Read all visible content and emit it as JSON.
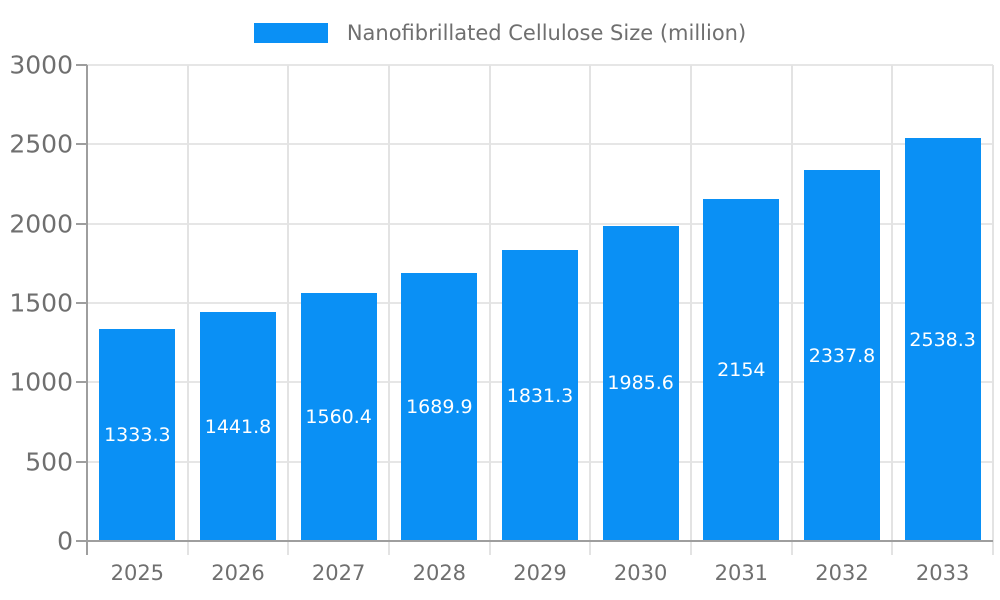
{
  "legend": {
    "label": "Nanofibrillated Cellulose Size (million)"
  },
  "chart_data": {
    "type": "bar",
    "title": "Nanofibrillated Cellulose Size (million)",
    "categories": [
      "2025",
      "2026",
      "2027",
      "2028",
      "2029",
      "2030",
      "2031",
      "2032",
      "2033"
    ],
    "values": [
      1333.3,
      1441.8,
      1560.4,
      1689.9,
      1831.3,
      1985.6,
      2154,
      2337.8,
      2538.3
    ],
    "value_labels": [
      "1333.3",
      "1441.8",
      "1560.4",
      "1689.9",
      "1831.3",
      "1985.6",
      "2154",
      "2337.8",
      "2538.3"
    ],
    "series": [
      {
        "name": "Nanofibrillated Cellulose Size (million)",
        "values": [
          1333.3,
          1441.8,
          1560.4,
          1689.9,
          1831.3,
          1985.6,
          2154,
          2337.8,
          2538.3
        ]
      }
    ],
    "xlabel": "",
    "ylabel": "",
    "ylim": [
      0,
      3000
    ],
    "yticks": [
      0,
      500,
      1000,
      1500,
      2000,
      2500,
      3000
    ],
    "grid": true,
    "legend_position": "top",
    "value_labels_position": "center-inside"
  },
  "colors": {
    "bar": "#0a90f5",
    "value_label": "#ffffff",
    "axis_line": "#9e9e9e",
    "gridline": "#e6e6e6",
    "axis_text": "#6f6f6f",
    "legend_text": "#6f6f6f",
    "background": "#ffffff"
  }
}
